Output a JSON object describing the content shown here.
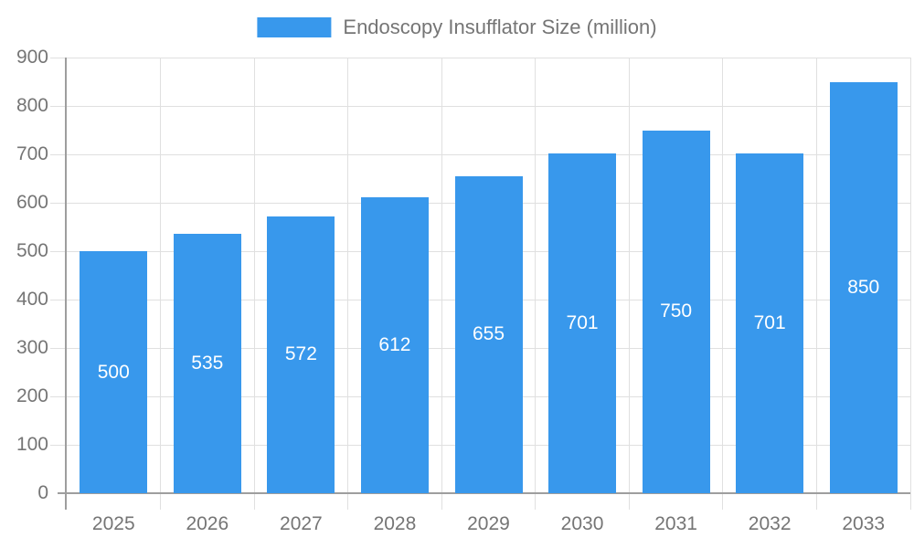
{
  "legend": {
    "label": "Endoscopy Insufflator Size (million)"
  },
  "chart_data": {
    "type": "bar",
    "title": "Endoscopy Insufflator Size (million)",
    "categories": [
      "2025",
      "2026",
      "2027",
      "2028",
      "2029",
      "2030",
      "2031",
      "2032",
      "2033"
    ],
    "series": [
      {
        "name": "Endoscopy Insufflator Size (million)",
        "values": [
          500,
          535,
          572,
          612,
          655,
          701,
          750,
          701,
          850
        ]
      }
    ],
    "xlabel": "",
    "ylabel": "",
    "ylim": [
      0,
      900
    ],
    "ytick_interval": 100,
    "grid": true,
    "data_labels": "inside-center",
    "legend_position": "top-center",
    "colors": {
      "bar": "#3898EC",
      "bar_label": "#FFFFFF",
      "axis_text": "#757575",
      "axis_line": "#9E9E9E",
      "gridline": "#E0E0E0",
      "background": "#FFFFFF"
    }
  }
}
